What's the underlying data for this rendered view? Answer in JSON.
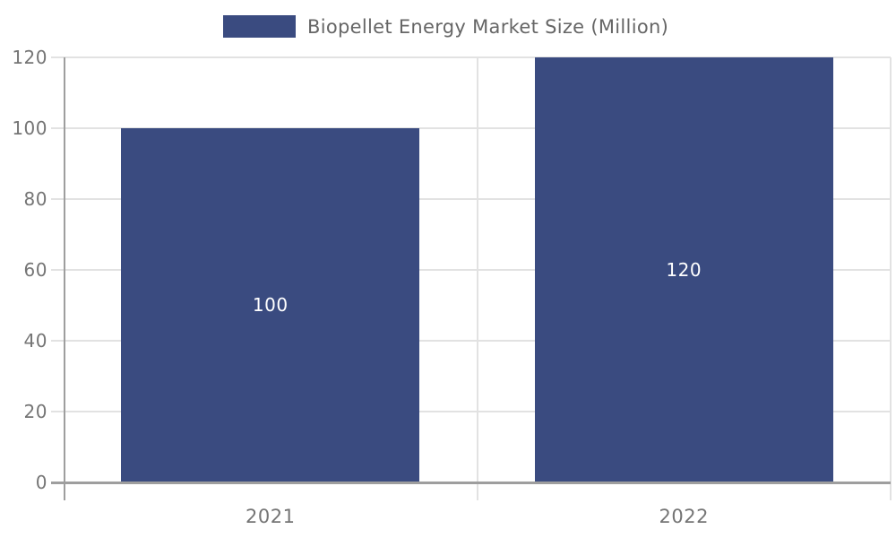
{
  "chart_data": {
    "type": "bar",
    "title": "Biopellet Energy Market Size (Million)",
    "categories": [
      "2021",
      "2022"
    ],
    "values": [
      100,
      120
    ],
    "bar_labels": [
      "100",
      "120"
    ],
    "xlabel": "",
    "ylabel": "",
    "ylim": [
      0,
      120
    ],
    "yticks": [
      0,
      20,
      40,
      60,
      80,
      100,
      120
    ],
    "grid": true,
    "legend": {
      "label": "Biopellet Energy Market Size (Million)",
      "position": "top-center"
    },
    "colors": {
      "bar": "#3a4b80",
      "bar_label": "#ffffff",
      "axis_line": "#9e9e9e",
      "gridline": "#e2e2e2",
      "tick_label": "#757575",
      "legend_label": "#666666",
      "background": "#ffffff"
    }
  }
}
